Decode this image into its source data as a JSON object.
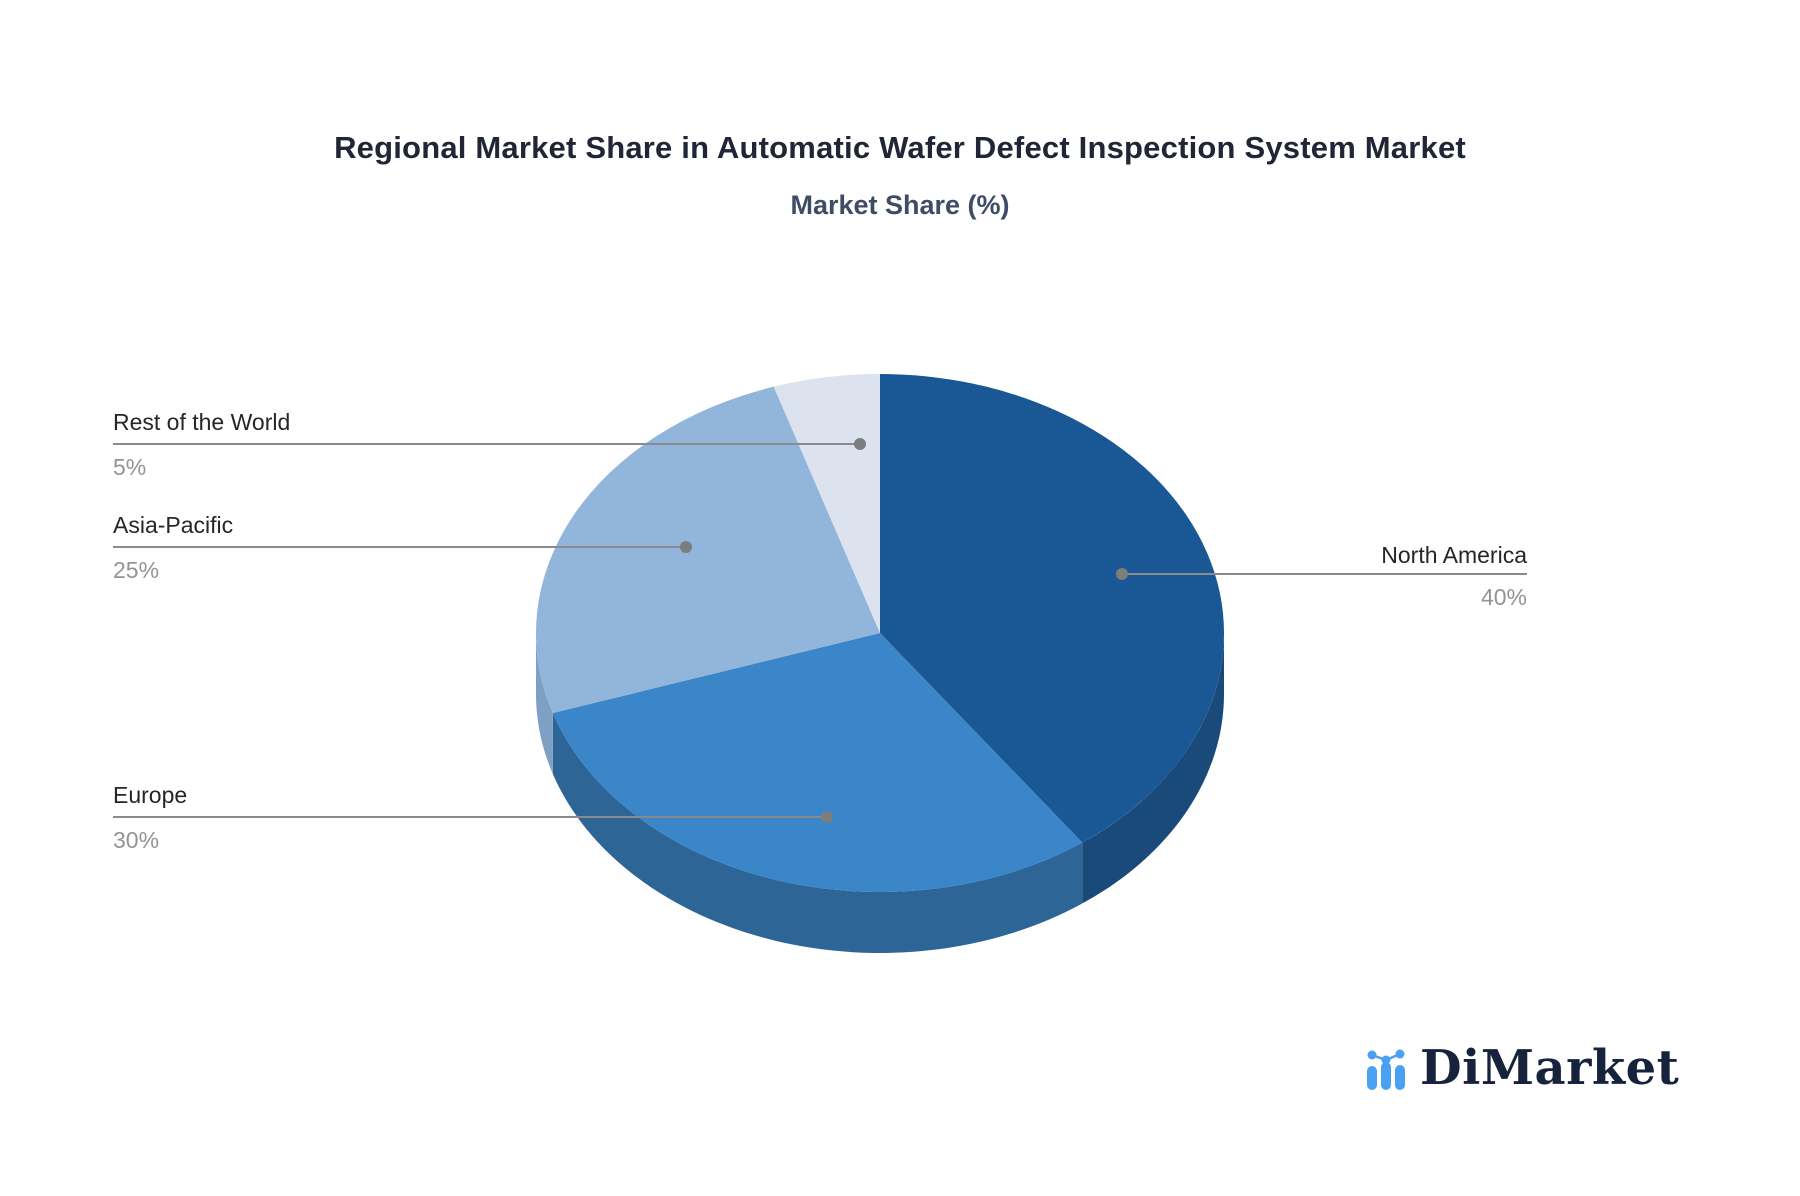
{
  "chart_data": {
    "type": "pie",
    "style": "3d-pie",
    "title": "Regional Market Share in Automatic Wafer Defect Inspection System Market",
    "subtitle": "Market Share (%)",
    "unit": "%",
    "start_angle": "12-o'clock",
    "direction": "clockwise",
    "legend_position": "none",
    "slices": [
      {
        "label": "North America",
        "value": 40,
        "display": "40%",
        "color": "#1A5795",
        "side_color": "#1A4A7A"
      },
      {
        "label": "Europe",
        "value": 30,
        "display": "30%",
        "color": "#3A86C8",
        "side_color": "#2D6596"
      },
      {
        "label": "Asia-Pacific",
        "value": 25,
        "display": "25%",
        "color": "#92B5DB",
        "side_color": "#7FA0C4"
      },
      {
        "label": "Rest of the World",
        "value": 5,
        "display": "5%",
        "color": "#DCE3EF",
        "side_color": "#BCC9DC"
      }
    ]
  },
  "colors": {
    "background": "#FFFFFF",
    "title_text": "#202636",
    "subtitle_text": "#3E4C66",
    "label_text": "#262626",
    "pct_text": "#949494",
    "leader_line": "#8A8A8A",
    "leader_dot": "#7D7D7D"
  },
  "logo": {
    "text": "DiMarket",
    "icon": "bar-chart-trend-icon",
    "icon_color": "#4BA1F1",
    "text_color": "#17233C"
  }
}
